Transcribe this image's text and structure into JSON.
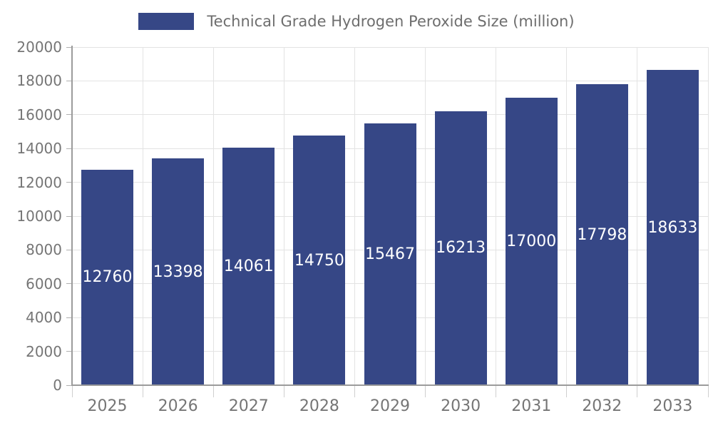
{
  "legend": {
    "label": "Technical Grade Hydrogen Peroxide Size (million)",
    "position": "top"
  },
  "colors": {
    "bar": "#364786",
    "grid_line": "#e3e3e3",
    "axis_line": "#9b9b9b",
    "y_tick": "#b0b0b0",
    "x_tick": "#cfcfcf",
    "axis_text": "#757575",
    "legend_text": "#6e6e6e",
    "value_text": "#ffffff",
    "background": "#ffffff"
  },
  "chart_data": {
    "type": "bar",
    "title": "",
    "series_name": "Technical Grade Hydrogen Peroxide Size (million)",
    "categories": [
      "2025",
      "2026",
      "2027",
      "2028",
      "2029",
      "2030",
      "2031",
      "2032",
      "2033"
    ],
    "values": [
      12760,
      13398,
      14061,
      14750,
      15467,
      16213,
      17000,
      17798,
      18633
    ],
    "xlabel": "",
    "ylabel": "",
    "ylim": [
      0,
      20000
    ],
    "ytick_step": 2000,
    "yticks": [
      0,
      2000,
      4000,
      6000,
      8000,
      10000,
      12000,
      14000,
      16000,
      18000,
      20000
    ],
    "grid": true,
    "legend_position": "top",
    "value_label_position": "inside-center"
  }
}
